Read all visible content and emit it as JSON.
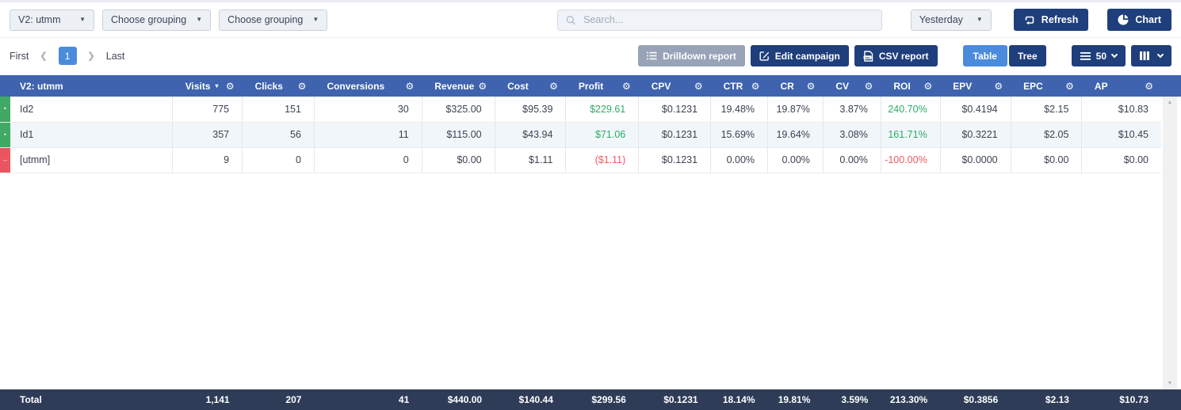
{
  "toolbar": {
    "variable_dropdown": {
      "value": "V2: utmm"
    },
    "grouping_dropdowns": [
      "Choose grouping",
      "Choose grouping"
    ],
    "search": {
      "placeholder": "Search..."
    },
    "date_dropdown": {
      "value": "Yesterday"
    },
    "refresh_label": "Refresh",
    "chart_label": "Chart"
  },
  "pagination": {
    "first_label": "First",
    "current_page": "1",
    "last_label": "Last"
  },
  "actions": {
    "drilldown_label": "Drilldown report",
    "edit_campaign_label": "Edit campaign",
    "csv_report_label": "CSV report",
    "table_label": "Table",
    "tree_label": "Tree",
    "page_size": "50"
  },
  "table": {
    "name_header": "V2: utmm",
    "columns": [
      {
        "label": "Visits",
        "sorted": "desc"
      },
      {
        "label": "Clicks"
      },
      {
        "label": "Conversions"
      },
      {
        "label": "Revenue"
      },
      {
        "label": "Cost"
      },
      {
        "label": "Profit"
      },
      {
        "label": "CPV"
      },
      {
        "label": "CTR"
      },
      {
        "label": "CR"
      },
      {
        "label": "CV"
      },
      {
        "label": "ROI"
      },
      {
        "label": "EPV"
      },
      {
        "label": "EPC"
      },
      {
        "label": "AP"
      }
    ],
    "rows": [
      {
        "name": "Id2",
        "indicator": "green",
        "values": [
          "775",
          "151",
          "30",
          "$325.00",
          "$95.39",
          "$229.61",
          "$0.1231",
          "19.48%",
          "19.87%",
          "3.87%",
          "240.70%",
          "$0.4194",
          "$2.15",
          "$10.83"
        ]
      },
      {
        "name": "Id1",
        "indicator": "green",
        "values": [
          "357",
          "56",
          "11",
          "$115.00",
          "$43.94",
          "$71.06",
          "$0.1231",
          "15.69%",
          "19.64%",
          "3.08%",
          "161.71%",
          "$0.3221",
          "$2.05",
          "$10.45"
        ]
      },
      {
        "name": "[utmm]",
        "indicator": "red",
        "values": [
          "9",
          "0",
          "0",
          "$0.00",
          "$1.11",
          "($1.11)",
          "$0.1231",
          "0.00%",
          "0.00%",
          "0.00%",
          "-100.00%",
          "$0.0000",
          "$0.00",
          "$0.00"
        ]
      }
    ],
    "total": {
      "label": "Total",
      "values": [
        "1,141",
        "207",
        "41",
        "$440.00",
        "$140.44",
        "$299.56",
        "$0.1231",
        "18.14%",
        "19.81%",
        "3.59%",
        "213.30%",
        "$0.3856",
        "$2.13",
        "$10.73"
      ]
    }
  },
  "colors": {
    "header_blue": "#3f63ae",
    "accent_blue": "#4b8bdc",
    "dark_navy": "#1f3e7c",
    "gray_button": "#98a3b8",
    "total_bar": "#2e3c58",
    "positive_green": "#2cab66",
    "total_green": "#36df6d",
    "negative_red": "#f15a5f",
    "indicator_green": "#41a964",
    "indicator_red": "#eb5560",
    "row_stripe": "#f1f6fa"
  }
}
